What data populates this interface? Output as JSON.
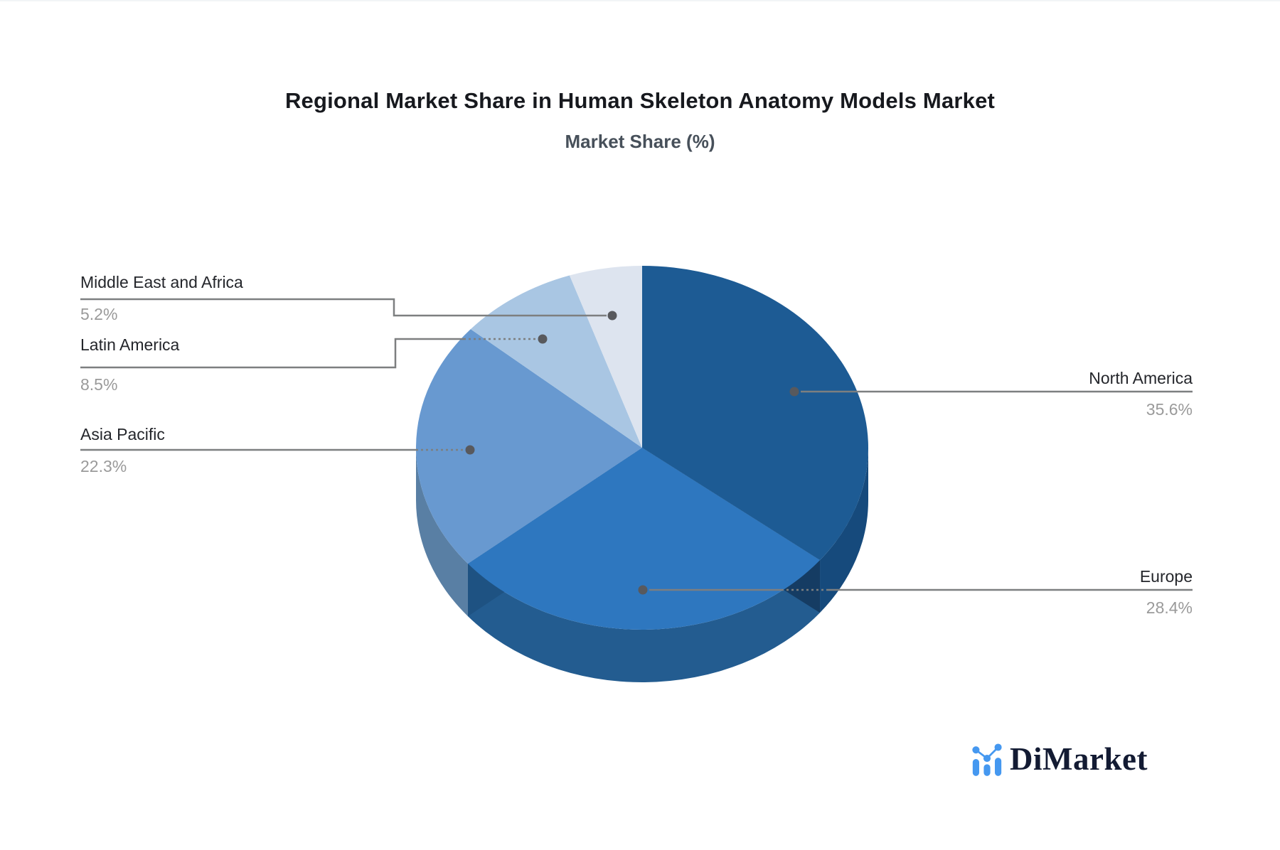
{
  "title": "Regional Market Share in Human Skeleton Anatomy Models Market",
  "subtitle": "Market Share (%)",
  "chart_data": {
    "type": "pie",
    "style": "3d-pie",
    "title": "Regional Market Share in Human Skeleton Anatomy Models Market",
    "subtitle": "Market Share (%)",
    "unit": "%",
    "start_angle_deg_from_12_oclock": 0,
    "direction": "clockwise",
    "slices": [
      {
        "label": "North America",
        "value": 35.6,
        "pct_text": "35.6%",
        "color": "#1d5b94",
        "side_color": "#164a7c",
        "label_side": "right"
      },
      {
        "label": "Europe",
        "value": 28.4,
        "pct_text": "28.4%",
        "color": "#2e77bf",
        "side_color": "#235c90",
        "label_side": "right"
      },
      {
        "label": "Asia Pacific",
        "value": 22.3,
        "pct_text": "22.3%",
        "color": "#6899d0",
        "side_color": "#597fa4",
        "label_side": "left"
      },
      {
        "label": "Latin America",
        "value": 8.5,
        "pct_text": "8.5%",
        "color": "#a9c6e3",
        "side_color": "#8aa6c4",
        "label_side": "left"
      },
      {
        "label": "Middle East and Africa",
        "value": 5.2,
        "pct_text": "5.2%",
        "color": "#dde4ef",
        "side_color": "#b9c2d2",
        "label_side": "left"
      }
    ],
    "legend": "none",
    "label_name_color": "#24262b",
    "label_pct_color": "#9a9a9a",
    "leader_line_color": "#7d7f80",
    "anchor_dot_color": "#58595d"
  },
  "logo": {
    "text": "DiMarket",
    "icon_color": "#4598f0",
    "text_color": "#131b33"
  }
}
